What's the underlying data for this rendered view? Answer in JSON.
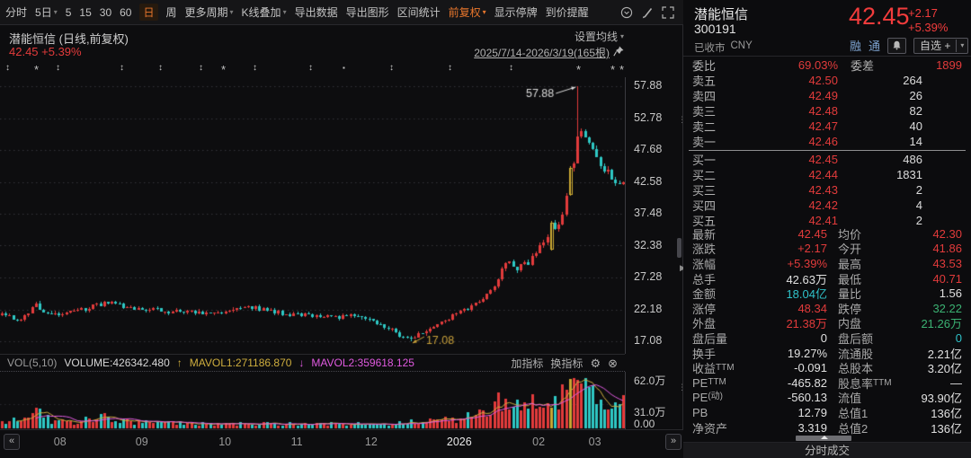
{
  "colors": {
    "up": "#e23b3b",
    "down": "#2ec7c4",
    "yellow": "#c9a832",
    "grid": "#34343a",
    "accent_orange": "#e8762c",
    "mavol1": "#cfae3e",
    "mavol2": "#e05ae0",
    "anno_max": "#dcdcdc",
    "anno_min": "#c9a13b"
  },
  "toolbar": {
    "items": [
      {
        "label": "分时"
      },
      {
        "label": "5日",
        "caret": true
      },
      {
        "label": "5"
      },
      {
        "label": "15"
      },
      {
        "label": "30"
      },
      {
        "label": "60"
      },
      {
        "label": "日",
        "active": true
      },
      {
        "label": "周"
      },
      {
        "label": "更多周期",
        "caret": true
      },
      {
        "label": "K线叠加",
        "caret": true
      },
      {
        "label": "导出数据"
      },
      {
        "label": "导出图形"
      },
      {
        "label": "区间统计"
      },
      {
        "label": "前复权",
        "caret": true,
        "accent": true
      },
      {
        "label": "显示停牌"
      },
      {
        "label": "到价提醒"
      }
    ]
  },
  "chart": {
    "title": "潜能恒信 (日线,前复权)",
    "price_change": "42.45 +5.39%",
    "ma_setting_label": "设置均线",
    "range_label": "2025/7/14-2026/3/19(165根)",
    "markers": [
      {
        "x": 10,
        "t": "ud"
      },
      {
        "x": 42,
        "t": "star"
      },
      {
        "x": 66,
        "t": "ud"
      },
      {
        "x": 137,
        "t": "ud"
      },
      {
        "x": 180,
        "t": "ud"
      },
      {
        "x": 225,
        "t": "ud"
      },
      {
        "x": 250,
        "t": "star"
      },
      {
        "x": 285,
        "t": "ud"
      },
      {
        "x": 347,
        "t": "ud"
      },
      {
        "x": 385,
        "t": "sq"
      },
      {
        "x": 437,
        "t": "ud"
      },
      {
        "x": 502,
        "t": "ud"
      },
      {
        "x": 570,
        "t": "ud"
      },
      {
        "x": 645,
        "t": "star"
      },
      {
        "x": 683,
        "t": "star"
      },
      {
        "x": 693,
        "t": "star"
      }
    ]
  },
  "volume_pane": {
    "indicator": "VOL(5,10)",
    "volume": "VOLUME:426342.480",
    "up_arrow": "↑",
    "mavol1": "MAVOL1:271186.870",
    "down_arrow": "↓",
    "mavol2": "MAVOL2:359618.125",
    "add_label": "加指标",
    "switch_label": "换指标",
    "ticks": [
      {
        "label": "62.0万",
        "top": 1
      },
      {
        "label": "31.0万",
        "top": 36
      },
      {
        "label": "0.00",
        "top": 51
      }
    ]
  },
  "x_axis": {
    "prev_label": "«",
    "next_label": "»",
    "ticks": [
      {
        "label": "08",
        "f": 0.096
      },
      {
        "label": "09",
        "f": 0.227
      },
      {
        "label": "10",
        "f": 0.36
      },
      {
        "label": "11",
        "f": 0.475
      },
      {
        "label": "12",
        "f": 0.594
      },
      {
        "label": "2026",
        "f": 0.735,
        "bold": true
      },
      {
        "label": "02",
        "f": 0.862
      },
      {
        "label": "03",
        "f": 0.952
      }
    ]
  },
  "chart_data": {
    "type": "candlestick",
    "title": "潜能恒信 日线(前复权) 2025/7/14-2026/3/19",
    "bar_count": 165,
    "y_ticks": [
      57.88,
      52.78,
      47.68,
      42.58,
      37.48,
      32.38,
      27.28,
      22.18,
      17.08
    ],
    "x_labels": [
      "08",
      "09",
      "10",
      "11",
      "12",
      "2026",
      "02",
      "03"
    ],
    "range_high": 57.88,
    "range_low": 17.08,
    "last_price": 42.45,
    "high_annotation": "57.88",
    "low_annotation": "17.08",
    "high_fraction": 0.928,
    "low_fraction": 0.658,
    "yellow_candle_fractions": [
      0.885,
      0.917
    ],
    "price_anchors": [
      [
        0,
        21.2
      ],
      [
        0.03,
        20.6
      ],
      [
        0.055,
        23.0
      ],
      [
        0.075,
        21.4
      ],
      [
        0.12,
        21.9
      ],
      [
        0.165,
        23.2
      ],
      [
        0.21,
        22.5
      ],
      [
        0.27,
        21.9
      ],
      [
        0.34,
        21.7
      ],
      [
        0.4,
        22.5
      ],
      [
        0.45,
        21.6
      ],
      [
        0.52,
        21.1
      ],
      [
        0.575,
        20.9
      ],
      [
        0.615,
        19.6
      ],
      [
        0.645,
        17.9
      ],
      [
        0.658,
        17.4
      ],
      [
        0.675,
        18.4
      ],
      [
        0.7,
        19.8
      ],
      [
        0.73,
        21.2
      ],
      [
        0.755,
        22.6
      ],
      [
        0.775,
        24.3
      ],
      [
        0.795,
        26.5
      ],
      [
        0.815,
        30.2
      ],
      [
        0.83,
        28.6
      ],
      [
        0.85,
        30.0
      ],
      [
        0.868,
        32.5
      ],
      [
        0.885,
        34.0
      ],
      [
        0.9,
        37.0
      ],
      [
        0.912,
        41.5
      ],
      [
        0.922,
        46.0
      ],
      [
        0.93,
        51.5
      ],
      [
        0.938,
        50.5
      ],
      [
        0.948,
        48.0
      ],
      [
        0.958,
        46.0
      ],
      [
        0.972,
        44.5
      ],
      [
        0.985,
        42.5
      ],
      [
        1,
        42.45
      ]
    ],
    "volume_axis_max_wan": 66,
    "volume_last_wan": 42.63,
    "volume_anchors": [
      [
        0,
        8
      ],
      [
        0.03,
        10
      ],
      [
        0.055,
        22
      ],
      [
        0.08,
        9
      ],
      [
        0.12,
        8
      ],
      [
        0.165,
        16
      ],
      [
        0.2,
        9
      ],
      [
        0.27,
        7
      ],
      [
        0.34,
        6
      ],
      [
        0.42,
        5.5
      ],
      [
        0.5,
        5
      ],
      [
        0.57,
        5.5
      ],
      [
        0.62,
        6
      ],
      [
        0.655,
        8
      ],
      [
        0.69,
        9
      ],
      [
        0.72,
        11
      ],
      [
        0.75,
        16
      ],
      [
        0.775,
        24
      ],
      [
        0.8,
        34
      ],
      [
        0.82,
        30
      ],
      [
        0.84,
        26
      ],
      [
        0.86,
        34
      ],
      [
        0.885,
        40
      ],
      [
        0.9,
        44
      ],
      [
        0.915,
        50
      ],
      [
        0.928,
        62
      ],
      [
        0.94,
        52
      ],
      [
        0.955,
        46
      ],
      [
        0.97,
        40
      ],
      [
        0.985,
        45
      ],
      [
        1,
        42.6
      ]
    ]
  },
  "quote": {
    "name": "潜能恒信",
    "code": "300191",
    "market_status": "已收市",
    "currency": "CNY",
    "last": "42.45",
    "change": "+2.17",
    "change_pct": "+5.39%",
    "tags": [
      "融",
      "通"
    ],
    "watchlist_label": "自选 +",
    "order_book": {
      "ratio_label": "委比",
      "ratio": "69.03%",
      "diff_label": "委差",
      "diff": "1899",
      "asks": [
        {
          "label": "卖五",
          "price": "42.50",
          "vol": "264"
        },
        {
          "label": "卖四",
          "price": "42.49",
          "vol": "26"
        },
        {
          "label": "卖三",
          "price": "42.48",
          "vol": "82"
        },
        {
          "label": "卖二",
          "price": "42.47",
          "vol": "40"
        },
        {
          "label": "卖一",
          "price": "42.46",
          "vol": "14"
        }
      ],
      "bids": [
        {
          "label": "买一",
          "price": "42.45",
          "vol": "486"
        },
        {
          "label": "买二",
          "price": "42.44",
          "vol": "1831"
        },
        {
          "label": "买三",
          "price": "42.43",
          "vol": "2"
        },
        {
          "label": "买四",
          "price": "42.42",
          "vol": "4"
        },
        {
          "label": "买五",
          "price": "42.41",
          "vol": "2"
        }
      ]
    },
    "stats": [
      {
        "l1": "最新",
        "v1": "42.45",
        "c1": "red",
        "l2": "均价",
        "v2": "42.30",
        "c2": "red"
      },
      {
        "l1": "涨跌",
        "v1": "+2.17",
        "c1": "red",
        "l2": "今开",
        "v2": "41.86",
        "c2": "red"
      },
      {
        "l1": "涨幅",
        "v1": "+5.39%",
        "c1": "red",
        "l2": "最高",
        "v2": "43.53",
        "c2": "red"
      },
      {
        "l1": "总手",
        "v1": "42.63万",
        "c1": "white",
        "l2": "最低",
        "v2": "40.71",
        "c2": "red"
      },
      {
        "l1": "金额",
        "v1": "18.04亿",
        "c1": "teal",
        "l2": "量比",
        "v2": "1.56",
        "c2": "white"
      },
      {
        "l1": "涨停",
        "v1": "48.34",
        "c1": "red",
        "l2": "跌停",
        "v2": "32.22",
        "c2": "green"
      },
      {
        "l1": "外盘",
        "v1": "21.38万",
        "c1": "red",
        "l2": "内盘",
        "v2": "21.26万",
        "c2": "green"
      },
      {
        "l1": "盘后量",
        "v1": "0",
        "c1": "white",
        "l2": "盘后额",
        "v2": "0",
        "c2": "teal"
      },
      {
        "l1": "换手",
        "v1": "19.27%",
        "c1": "white",
        "l2": "流通股",
        "v2": "2.21亿",
        "c2": "white"
      },
      {
        "l1": "收益",
        "s1": "TTM",
        "v1": "-0.091",
        "c1": "white",
        "l2": "总股本",
        "v2": "3.20亿",
        "c2": "white"
      },
      {
        "l1": "PE",
        "s1": "TTM",
        "v1": "-465.82",
        "c1": "white",
        "l2": "股息率",
        "s2": "TTM",
        "v2": "—",
        "c2": "white"
      },
      {
        "l1": "PE",
        "s1": "(动)",
        "v1": "-560.13",
        "c1": "white",
        "l2": "流值",
        "v2": "93.90亿",
        "c2": "white"
      },
      {
        "l1": "PB",
        "v1": "12.79",
        "c1": "white",
        "l2": "总值1",
        "v2": "136亿",
        "c2": "white"
      },
      {
        "l1": "净资产",
        "v1": "3.319",
        "c1": "white",
        "l2": "总值2",
        "v2": "136亿",
        "c2": "white"
      }
    ],
    "footer": "分时成交"
  }
}
